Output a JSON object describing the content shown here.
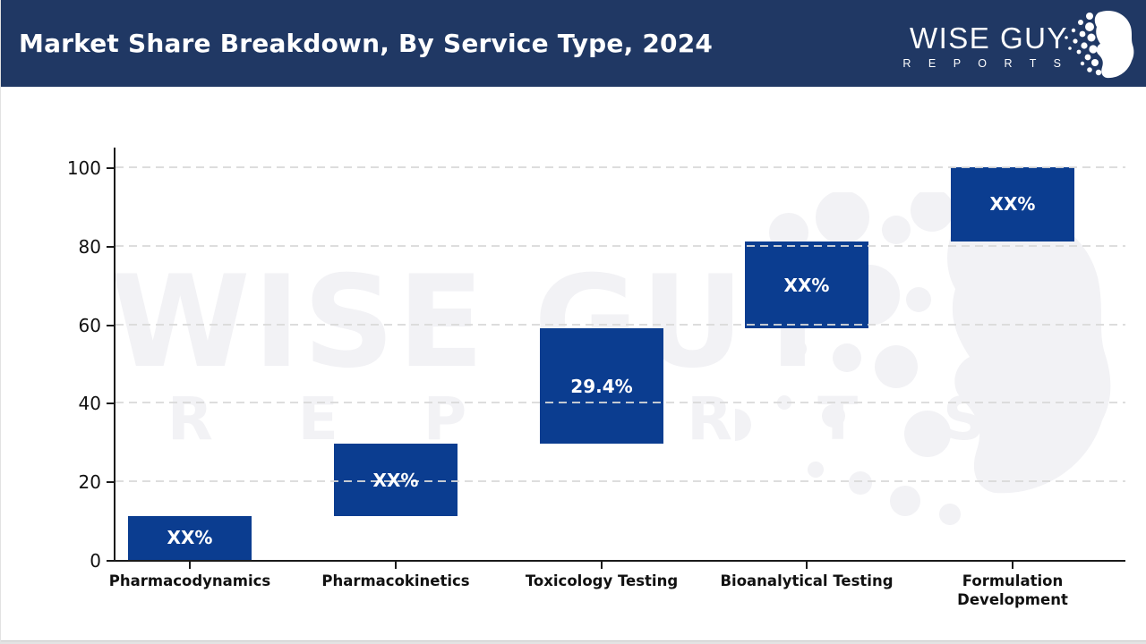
{
  "header": {
    "title": "Market Share Breakdown, By Service Type, 2024",
    "background_color": "#203864",
    "logo": {
      "line1": "WISE GUY",
      "line2": "R E P O R T S"
    }
  },
  "watermark": {
    "line1": "WISE GUY",
    "line2": "R E P O R T S"
  },
  "chart_data": {
    "type": "bar",
    "subtype": "floating-segment (waterfall-style market share breakdown)",
    "title": "Market Share Breakdown, By Service Type, 2024",
    "categories": [
      "Pharmacodynamics",
      "Pharmacokinetics",
      "Toxicology Testing",
      "Bioanalytical Testing",
      "Formulation Development"
    ],
    "series": [
      {
        "name": "Market Share (%)",
        "ranges": [
          [
            0,
            11.2
          ],
          [
            11.2,
            29.5
          ],
          [
            29.5,
            58.9
          ],
          [
            58.9,
            81.1
          ],
          [
            81.1,
            100
          ]
        ]
      }
    ],
    "bar_labels": [
      "XX%",
      "XX%",
      "29.4%",
      "XX%",
      "XX%"
    ],
    "xlabel": "",
    "ylabel": "",
    "ylim": [
      0,
      105
    ],
    "yticks": [
      0,
      20,
      40,
      60,
      80,
      100
    ],
    "grid": "horizontal dashed",
    "legend": "none",
    "bar_color": "#0b3d90",
    "bar_label_color": "#ffffff",
    "gridline_color": "#d9d9d9",
    "axis_color": "#1a1a1a"
  }
}
